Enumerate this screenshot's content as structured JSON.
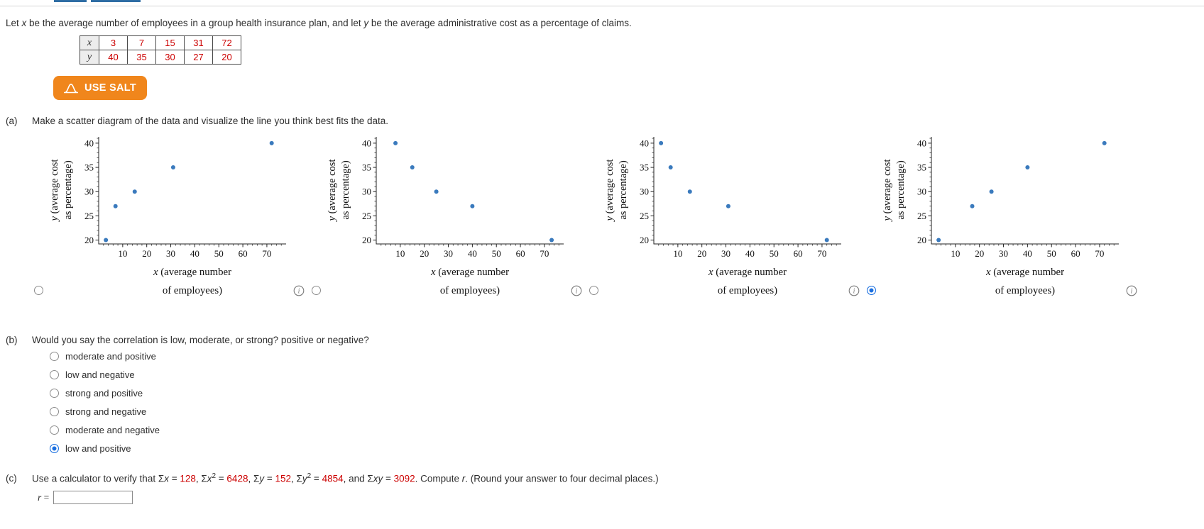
{
  "intro": {
    "segments": [
      {
        "t": "Let "
      },
      {
        "t": "x",
        "i": 1
      },
      {
        "t": " be the average number of employees in a group health insurance plan, and let "
      },
      {
        "t": "y",
        "i": 1
      },
      {
        "t": " be the average administrative cost as a percentage of claims."
      }
    ]
  },
  "data_table": {
    "row_labels": [
      "x",
      "y"
    ],
    "x_values": [
      "3",
      "7",
      "15",
      "31",
      "72"
    ],
    "y_values": [
      "40",
      "35",
      "30",
      "27",
      "20"
    ]
  },
  "use_salt_button": {
    "label": "USE SALT"
  },
  "part_a": {
    "label": "(a)",
    "prompt": "Make a scatter diagram of the data and visualize the line you think best fits the data."
  },
  "chart_data": [
    {
      "type": "scatter",
      "selected": false,
      "points": [
        [
          3,
          20
        ],
        [
          7,
          27
        ],
        [
          15,
          30
        ],
        [
          31,
          35
        ],
        [
          72,
          40
        ]
      ],
      "x_ticks": [
        10,
        20,
        30,
        40,
        50,
        60,
        70
      ],
      "y_ticks": [
        20,
        25,
        30,
        35,
        40
      ],
      "xlim": [
        0,
        78
      ],
      "ylim": [
        19.2,
        41.3
      ],
      "dot_color": "#3a7abd",
      "ylabel1": [
        {
          "t": "y",
          "i": 1
        },
        {
          "t": " (average cost"
        }
      ],
      "ylabel2": [
        {
          "t": "as percentage)"
        }
      ],
      "xlabel1": [
        {
          "t": "x",
          "i": 1
        },
        {
          "t": " (average number"
        }
      ],
      "xlabel2": [
        {
          "t": "of employees)"
        }
      ]
    },
    {
      "type": "scatter",
      "selected": false,
      "points": [
        [
          8,
          40
        ],
        [
          15,
          35
        ],
        [
          25,
          30
        ],
        [
          40,
          27
        ],
        [
          73,
          20
        ]
      ],
      "x_ticks": [
        10,
        20,
        30,
        40,
        50,
        60,
        70
      ],
      "y_ticks": [
        20,
        25,
        30,
        35,
        40
      ],
      "xlim": [
        0,
        78
      ],
      "ylim": [
        19.2,
        41.3
      ],
      "dot_color": "#3a7abd",
      "ylabel1": [
        {
          "t": "y",
          "i": 1
        },
        {
          "t": " (average cost"
        }
      ],
      "ylabel2": [
        {
          "t": "as percentage)"
        }
      ],
      "xlabel1": [
        {
          "t": "x",
          "i": 1
        },
        {
          "t": " (average number"
        }
      ],
      "xlabel2": [
        {
          "t": "of employees)"
        }
      ]
    },
    {
      "type": "scatter",
      "selected": false,
      "points": [
        [
          3,
          40
        ],
        [
          7,
          35
        ],
        [
          15,
          30
        ],
        [
          31,
          27
        ],
        [
          72,
          20
        ]
      ],
      "x_ticks": [
        10,
        20,
        30,
        40,
        50,
        60,
        70
      ],
      "y_ticks": [
        20,
        25,
        30,
        35,
        40
      ],
      "xlim": [
        0,
        78
      ],
      "ylim": [
        19.2,
        41.3
      ],
      "dot_color": "#3a7abd",
      "ylabel1": [
        {
          "t": "y",
          "i": 1
        },
        {
          "t": " (average cost"
        }
      ],
      "ylabel2": [
        {
          "t": "as percentage)"
        }
      ],
      "xlabel1": [
        {
          "t": "x",
          "i": 1
        },
        {
          "t": " (average number"
        }
      ],
      "xlabel2": [
        {
          "t": "of employees)"
        }
      ]
    },
    {
      "type": "scatter",
      "selected": true,
      "points": [
        [
          3,
          20
        ],
        [
          17,
          27
        ],
        [
          25,
          30
        ],
        [
          40,
          35
        ],
        [
          72,
          40
        ]
      ],
      "x_ticks": [
        10,
        20,
        30,
        40,
        50,
        60,
        70
      ],
      "y_ticks": [
        20,
        25,
        30,
        35,
        40
      ],
      "xlim": [
        0,
        78
      ],
      "ylim": [
        19.2,
        41.3
      ],
      "dot_color": "#3a7abd",
      "ylabel1": [
        {
          "t": "y",
          "i": 1
        },
        {
          "t": " (average cost"
        }
      ],
      "ylabel2": [
        {
          "t": "as percentage)"
        }
      ],
      "xlabel1": [
        {
          "t": "x",
          "i": 1
        },
        {
          "t": " (average number"
        }
      ],
      "xlabel2": [
        {
          "t": "of employees)"
        }
      ]
    }
  ],
  "part_b": {
    "label": "(b)",
    "prompt": "Would you say the correlation is low, moderate, or strong? positive or negative?",
    "options": [
      {
        "label": "moderate and positive",
        "selected": false
      },
      {
        "label": "low and negative",
        "selected": false
      },
      {
        "label": "strong and positive",
        "selected": false
      },
      {
        "label": "strong and negative",
        "selected": false
      },
      {
        "label": "moderate and negative",
        "selected": false
      },
      {
        "label": "low and positive",
        "selected": true
      }
    ]
  },
  "part_c": {
    "label": "(c)",
    "segments": [
      {
        "t": "Use a calculator to verify that Σ"
      },
      {
        "t": "x",
        "i": 1
      },
      {
        "t": " = "
      },
      {
        "t": "128",
        "red": 1
      },
      {
        "t": ", Σ"
      },
      {
        "t": "x",
        "i": 1
      },
      {
        "t": "2",
        "sup": 1
      },
      {
        "t": " = "
      },
      {
        "t": "6428",
        "red": 1
      },
      {
        "t": ", Σ"
      },
      {
        "t": "y",
        "i": 1
      },
      {
        "t": " = "
      },
      {
        "t": "152",
        "red": 1
      },
      {
        "t": ", Σ"
      },
      {
        "t": "y",
        "i": 1
      },
      {
        "t": "2",
        "sup": 1
      },
      {
        "t": " = "
      },
      {
        "t": "4854",
        "red": 1
      },
      {
        "t": ", and Σ"
      },
      {
        "t": "x",
        "i": 1
      },
      {
        "t": "y",
        "i": 1
      },
      {
        "t": " = "
      },
      {
        "t": "3092",
        "red": 1
      },
      {
        "t": ". Compute "
      },
      {
        "t": "r",
        "i": 1
      },
      {
        "t": ". (Round your answer to four decimal places.)"
      }
    ],
    "answer": {
      "r_label": [
        {
          "t": "r",
          "i": 1
        },
        {
          "t": " ="
        }
      ],
      "value": ""
    }
  }
}
